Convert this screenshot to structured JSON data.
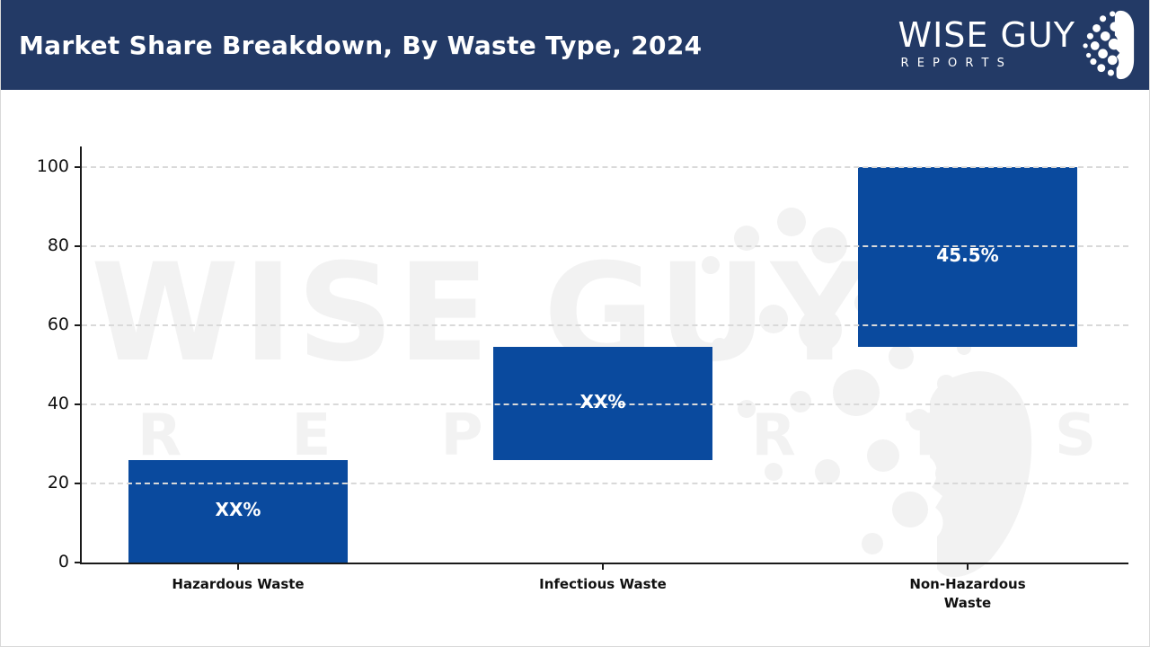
{
  "header": {
    "title": "Market Share Breakdown, By Waste Type, 2024",
    "logo_line1": "WISE GUY",
    "logo_line2": "R E P O R T S"
  },
  "watermark": {
    "line1": "WISE GUY",
    "line2": "R E P O R T S"
  },
  "colors": {
    "header_bg": "#233a66",
    "bar": "#0a4a9e",
    "grid": "#d9d9d9",
    "axis": "#1a1a1a",
    "watermark": "#f2f2f2",
    "bar_label": "#ffffff",
    "title": "#ffffff"
  },
  "chart_data": {
    "type": "bar",
    "subtype": "waterfall",
    "title": "Market Share Breakdown, By Waste Type, 2024",
    "categories": [
      "Hazardous Waste",
      "Infectious Waste",
      "Non-Hazardous Waste"
    ],
    "tick_labels": [
      "Hazardous Waste",
      "Infectious Waste",
      "Non-Hazardous\nWaste"
    ],
    "segments": [
      {
        "category": "Hazardous Waste",
        "start": 0,
        "end": 26,
        "value_label": "XX%"
      },
      {
        "category": "Infectious Waste",
        "start": 26,
        "end": 54.5,
        "value_label": "XX%"
      },
      {
        "category": "Non-Hazardous Waste",
        "start": 54.5,
        "end": 100,
        "value_label": "45.5%"
      }
    ],
    "yticks": [
      0,
      20,
      40,
      60,
      80,
      100
    ],
    "ylim": [
      0,
      105
    ],
    "xlabel": "",
    "ylabel": "",
    "grid": "horizontal dashed gridlines drawn above bars",
    "legend": null
  }
}
